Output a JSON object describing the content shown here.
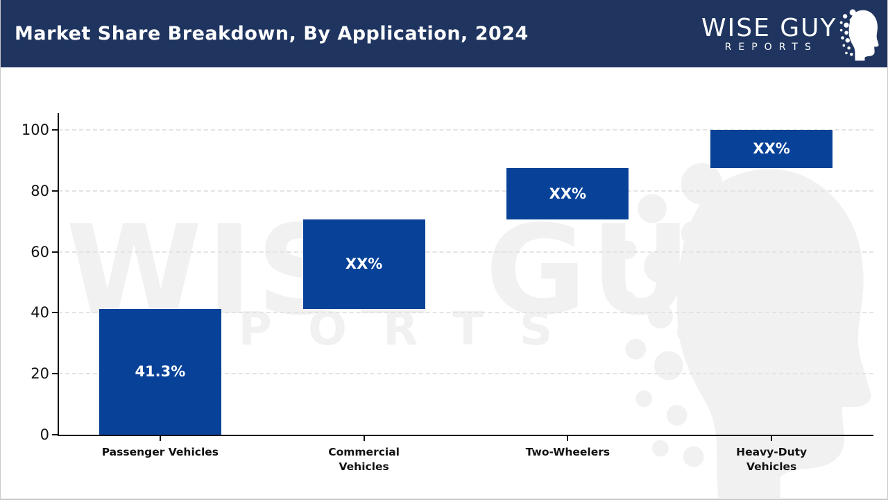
{
  "header": {
    "title": "Market Share Breakdown, By Application, 2024",
    "logo_line1": "WISE GUY",
    "logo_line2": "REPORTS",
    "bg_color": "#1f3560"
  },
  "watermark": {
    "line1": "WISE GUY",
    "line2": "REPORTS"
  },
  "chart_data": {
    "type": "bar",
    "subtype": "floating-waterfall",
    "title": "Market Share Breakdown, By Application, 2024",
    "categories": [
      "Passenger Vehicles",
      "Commercial\nVehicles",
      "Two-Wheelers",
      "Heavy-Duty\nVehicles"
    ],
    "segments": [
      {
        "category": "Passenger Vehicles",
        "start": 0,
        "end": 41.3,
        "label": "41.3%"
      },
      {
        "category": "Commercial Vehicles",
        "start": 41.3,
        "end": 70.6,
        "label": "XX%"
      },
      {
        "category": "Two-Wheelers",
        "start": 70.6,
        "end": 87.5,
        "label": "XX%"
      },
      {
        "category": "Heavy-Duty Vehicles",
        "start": 87.5,
        "end": 100,
        "label": "XX%"
      }
    ],
    "ylabel": "",
    "xlabel": "",
    "ylim": [
      0,
      105
    ],
    "yticks": [
      0,
      20,
      40,
      60,
      80,
      100
    ],
    "grid": "horizontal-dashed",
    "legend": "none",
    "bar_color": "#084298",
    "bar_label_color": "#ffffff",
    "axis_color": "#111111",
    "grid_color": "#e3e3e3"
  }
}
